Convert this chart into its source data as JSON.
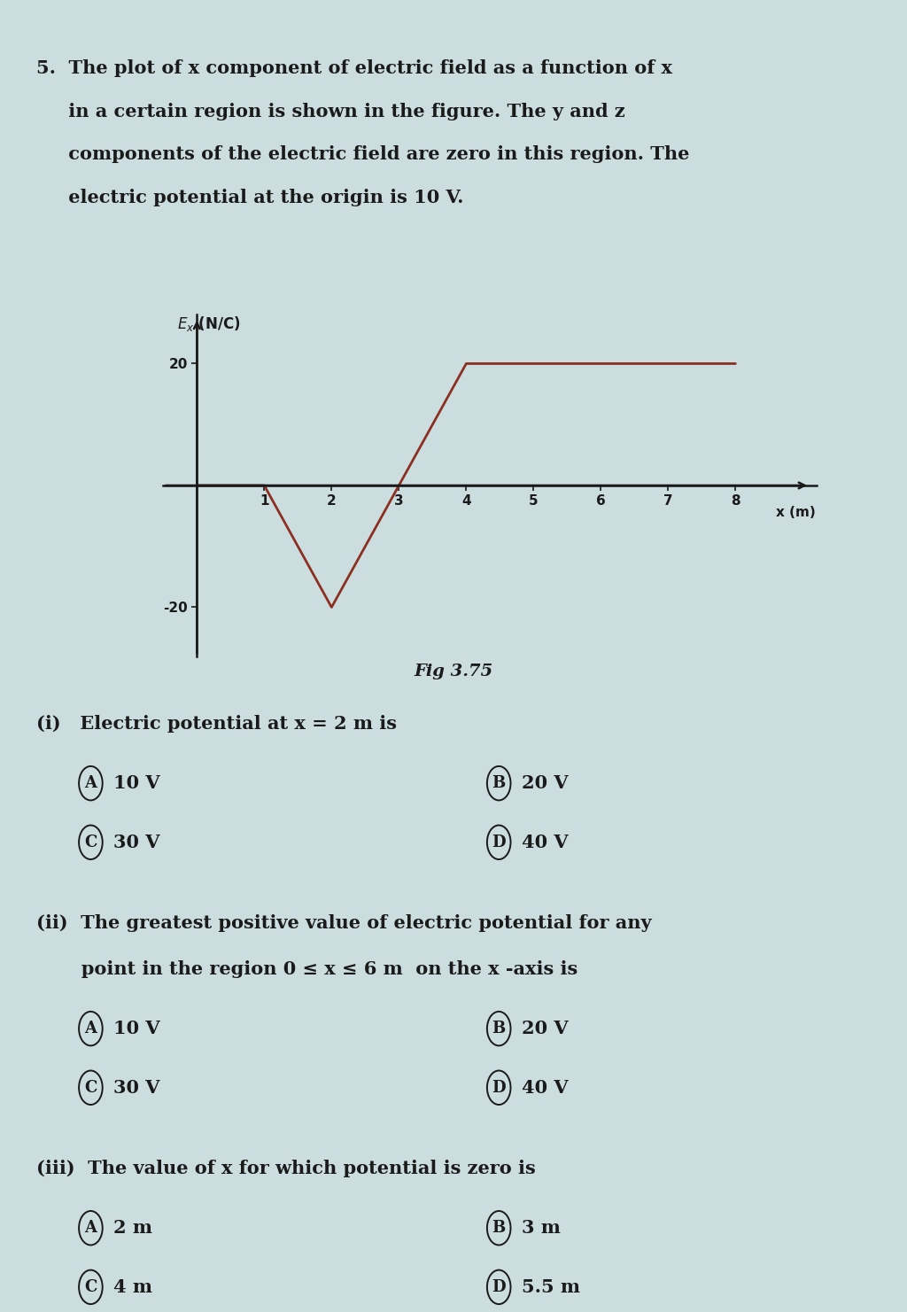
{
  "title": "Fig 3.75",
  "x_data": [
    0,
    1,
    2,
    3,
    4,
    8
  ],
  "y_data": [
    0,
    0,
    -20,
    0,
    20,
    20
  ],
  "xlim": [
    -0.5,
    9.2
  ],
  "ylim": [
    -28,
    28
  ],
  "xticks": [
    1,
    2,
    3,
    4,
    5,
    6,
    7,
    8
  ],
  "ytick_pos": [
    -20,
    20
  ],
  "ytick_labels": [
    "-20",
    "20"
  ],
  "line_color": "#8B3020",
  "line_width": 2.0,
  "axis_color": "#1a1a1a",
  "bg_color": "#ccdde0",
  "fig_bg_color": "#ccdde0",
  "graph_ylabel": "$E_x$ (N/C)",
  "graph_xlabel": "x (m)",
  "problem_lines": [
    "5.  The plot of x component of electric field as a function of x",
    "     in a certain region is shown in the figure. The y and z",
    "     components of the electric field are zero in this region. The",
    "     electric potential at the origin is 10 V."
  ],
  "q1_line": "(i)   Electric potential at x = 2 m is",
  "q1_opt_A": "10 V",
  "q1_opt_B": "20 V",
  "q1_opt_C": "30 V",
  "q1_opt_D": "40 V",
  "q2_line1": "(ii)  The greatest positive value of electric potential for any",
  "q2_line2": "       point in the region 0 ≤ x ≤ 6 m  on the x -axis is",
  "q2_opt_A": "10 V",
  "q2_opt_B": "20 V",
  "q2_opt_C": "30 V",
  "q2_opt_D": "40 V",
  "q3_line": "(iii)  The value of x for which potential is zero is",
  "q3_opt_A": "2 m",
  "q3_opt_B": "3 m",
  "q3_opt_C": "4 m",
  "q3_opt_D": "5.5 m",
  "circle_color": "#1a1a1a",
  "text_color": "#1a1a1a",
  "fontsize_main": 15,
  "fontsize_graph": 12
}
